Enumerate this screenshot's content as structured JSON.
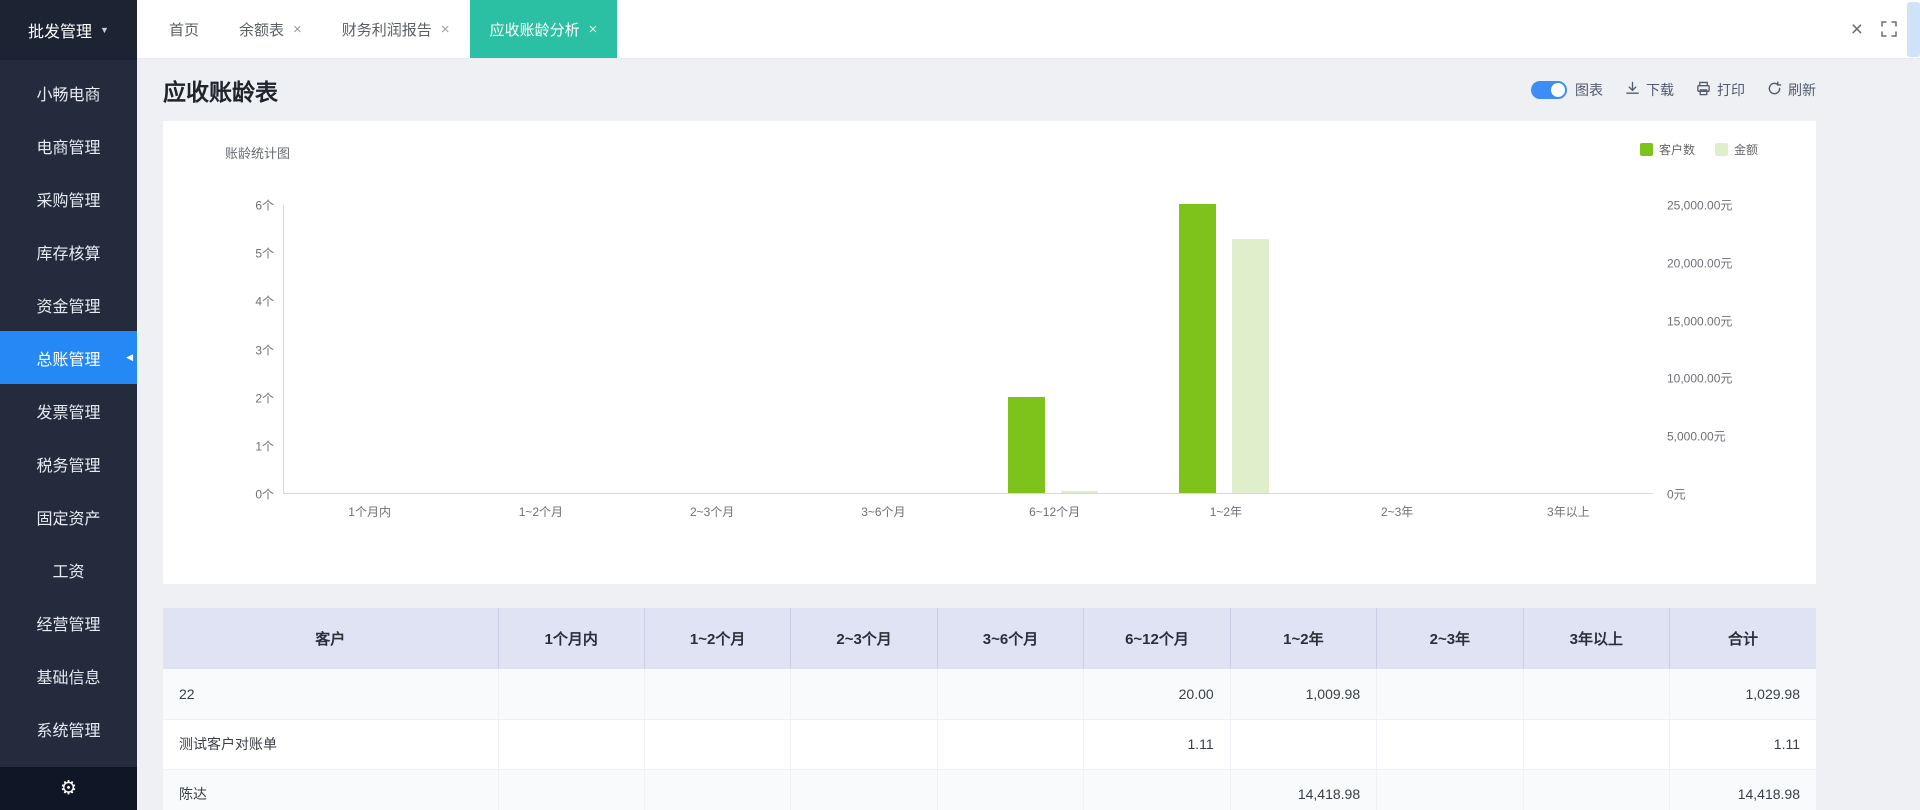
{
  "icons": {
    "close": "×",
    "caret_down": "▼",
    "active_marker": "◀",
    "gear": "⚙"
  },
  "sidebar": {
    "header": {
      "label": "批发管理"
    },
    "items": [
      {
        "label": "小畅电商",
        "active": false
      },
      {
        "label": "电商管理",
        "active": false
      },
      {
        "label": "采购管理",
        "active": false
      },
      {
        "label": "库存核算",
        "active": false
      },
      {
        "label": "资金管理",
        "active": false
      },
      {
        "label": "总账管理",
        "active": true
      },
      {
        "label": "发票管理",
        "active": false
      },
      {
        "label": "税务管理",
        "active": false
      },
      {
        "label": "固定资产",
        "active": false
      },
      {
        "label": "工资",
        "active": false
      },
      {
        "label": "经营管理",
        "active": false
      },
      {
        "label": "基础信息",
        "active": false
      },
      {
        "label": "系统管理",
        "active": false
      }
    ]
  },
  "tabs": [
    {
      "label": "首页",
      "closable": false,
      "active": false
    },
    {
      "label": "余额表",
      "closable": true,
      "active": false
    },
    {
      "label": "财务利润报告",
      "closable": true,
      "active": false
    },
    {
      "label": "应收账龄分析",
      "closable": true,
      "active": true
    }
  ],
  "page": {
    "title": "应收账龄表",
    "toolbar": {
      "toggle_on": true,
      "chart_label": "图表",
      "download_label": "下载",
      "print_label": "打印",
      "refresh_label": "刷新"
    }
  },
  "chart_data": {
    "type": "bar",
    "title": "账龄统计图",
    "categories": [
      "1个月内",
      "1~2个月",
      "2~3个月",
      "3~6个月",
      "6~12个月",
      "1~2年",
      "2~3年",
      "3年以上"
    ],
    "series": [
      {
        "name": "客户数",
        "axis": "left",
        "color": "#7ec31c",
        "values": [
          0,
          0,
          0,
          0,
          2,
          6,
          0,
          0
        ]
      },
      {
        "name": "金额",
        "axis": "right",
        "color": "#e0efcb",
        "values": [
          0,
          0,
          0,
          0,
          21.11,
          22000,
          0,
          0
        ]
      }
    ],
    "left_axis": {
      "unit": "个",
      "max": 6,
      "ticks": [
        "6个",
        "5个",
        "4个",
        "3个",
        "2个",
        "1个",
        "0个"
      ]
    },
    "right_axis": {
      "unit": "元",
      "max": 25000,
      "ticks": [
        "25,000.00元",
        "20,000.00元",
        "15,000.00元",
        "10,000.00元",
        "5,000.00元",
        "0元"
      ]
    },
    "legend_position": "top-right",
    "grid": false
  },
  "table": {
    "headers": [
      "客户",
      "1个月内",
      "1~2个月",
      "2~3个月",
      "3~6个月",
      "6~12个月",
      "1~2年",
      "2~3年",
      "3年以上",
      "合计"
    ],
    "rows": [
      [
        "22",
        "",
        "",
        "",
        "",
        "20.00",
        "1,009.98",
        "",
        "",
        "1,029.98"
      ],
      [
        "测试客户对账单",
        "",
        "",
        "",
        "",
        "1.11",
        "",
        "",
        "",
        "1.11"
      ],
      [
        "陈达",
        "",
        "",
        "",
        "",
        "",
        "14,418.98",
        "",
        "",
        "14,418.98"
      ]
    ]
  }
}
